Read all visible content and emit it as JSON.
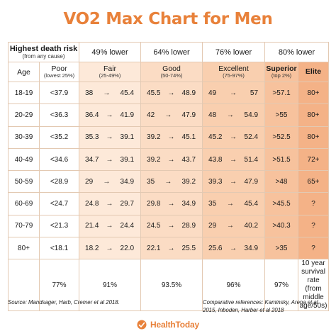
{
  "title": "VO2 Max Chart for Men",
  "chart_data": {
    "type": "table",
    "title": "VO2 Max Chart for Men",
    "header_row": {
      "risk_label": "Highest death risk",
      "risk_sub": "(from any cause)",
      "fair_pct": "49% lower",
      "good_pct": "64% lower",
      "excellent_pct": "76% lower",
      "superior_elite_pct": "80% lower"
    },
    "columns": [
      {
        "key": "age",
        "name": "Age",
        "range": ""
      },
      {
        "key": "poor",
        "name": "Poor",
        "range": "(lowest 25%)"
      },
      {
        "key": "fair",
        "name": "Fair",
        "range": "(25-49%)"
      },
      {
        "key": "good",
        "name": "Good",
        "range": "(50-74%)"
      },
      {
        "key": "excellent",
        "name": "Excellent",
        "range": "(75-97%)"
      },
      {
        "key": "superior",
        "name": "Superior",
        "range": "(top 2%)"
      },
      {
        "key": "elite",
        "name": "Elite",
        "range": ""
      }
    ],
    "arrow": "→",
    "rows": [
      {
        "age": "18-19",
        "poor": "<37.9",
        "fair_lo": "38",
        "fair_hi": "45.4",
        "good_lo": "45.5",
        "good_hi": "48.9",
        "exc_lo": "49",
        "exc_hi": "57",
        "superior": ">57.1",
        "elite": "80+"
      },
      {
        "age": "20-29",
        "poor": "<36.3",
        "fair_lo": "36.4",
        "fair_hi": "41.9",
        "good_lo": "42",
        "good_hi": "47.9",
        "exc_lo": "48",
        "exc_hi": "54.9",
        "superior": ">55",
        "elite": "80+"
      },
      {
        "age": "30-39",
        "poor": "<35.2",
        "fair_lo": "35.3",
        "fair_hi": "39.1",
        "good_lo": "39.2",
        "good_hi": "45.1",
        "exc_lo": "45.2",
        "exc_hi": "52.4",
        "superior": ">52.5",
        "elite": "80+"
      },
      {
        "age": "40-49",
        "poor": "<34.6",
        "fair_lo": "34.7",
        "fair_hi": "39.1",
        "good_lo": "39.2",
        "good_hi": "43.7",
        "exc_lo": "43.8",
        "exc_hi": "51.4",
        "superior": ">51.5",
        "elite": "72+"
      },
      {
        "age": "50-59",
        "poor": "<28.9",
        "fair_lo": "29",
        "fair_hi": "34.9",
        "good_lo": "35",
        "good_hi": "39.2",
        "exc_lo": "39.3",
        "exc_hi": "47.9",
        "superior": ">48",
        "elite": "65+"
      },
      {
        "age": "60-69",
        "poor": "<24.7",
        "fair_lo": "24.8",
        "fair_hi": "29.7",
        "good_lo": "29.8",
        "good_hi": "34.9",
        "exc_lo": "35",
        "exc_hi": "45.4",
        "superior": ">45.5",
        "elite": "?"
      },
      {
        "age": "70-79",
        "poor": "<21.3",
        "fair_lo": "21.4",
        "fair_hi": "24.4",
        "good_lo": "24.5",
        "good_hi": "28.9",
        "exc_lo": "29",
        "exc_hi": "40.2",
        "superior": ">40.3",
        "elite": "?"
      },
      {
        "age": "80+",
        "poor": "<18.1",
        "fair_lo": "18.2",
        "fair_hi": "22.0",
        "good_lo": "22.1",
        "good_hi": "25.5",
        "exc_lo": "25.6",
        "exc_hi": "34.9",
        "superior": ">35",
        "elite": "?"
      }
    ],
    "footer_row": {
      "poor": "77%",
      "fair": "91%",
      "good": "93.5%",
      "excellent": "96%",
      "superior": "97%",
      "elite_note": "10 year survival rate (from middle age/50s)"
    }
  },
  "source": "Source: Mandsager, Harb, Cremer et al 2018.",
  "references": "Comparative references: Kaminsky, Arena et al 2015, Inboden, Harber et al 2018",
  "brand": {
    "name": "HealthToday",
    "accent": "#e8813a"
  }
}
